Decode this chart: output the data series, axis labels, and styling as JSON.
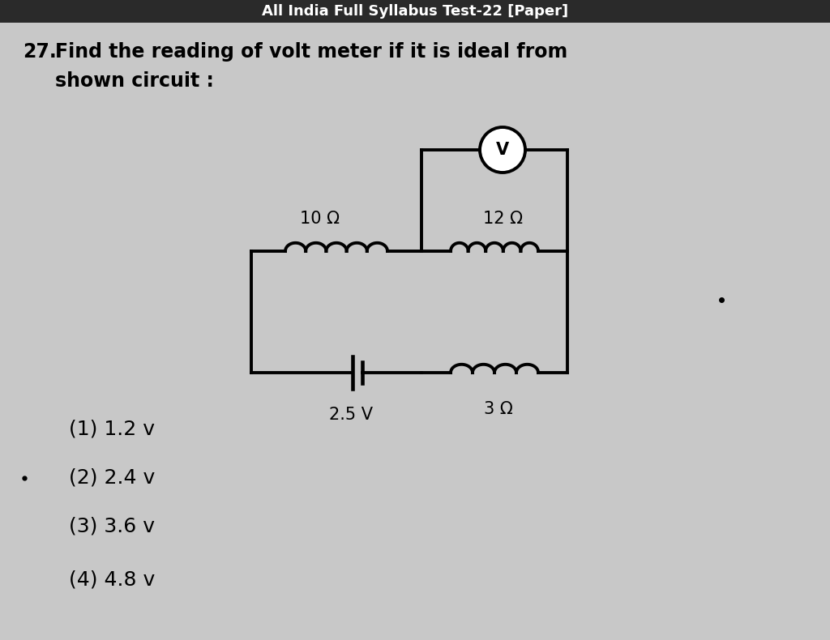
{
  "background_color": "#c8c8c8",
  "header_text": "All India Full Syllabus Test-22 [Paper]",
  "question_number": "27.",
  "question_line1": "Find the reading of volt meter if it is ideal from",
  "question_line2": "shown circuit :",
  "options": [
    "(1) 1.2 v",
    "(2) 2.4 v",
    "(3) 3.6 v",
    "(4) 4.8 v"
  ],
  "resistor_10": "10 Ω",
  "resistor_12": "12 Ω",
  "resistor_3": "3 Ω",
  "battery_label": "2.5 V",
  "voltmeter_label": "V",
  "text_color": "#000000",
  "line_color": "#000000",
  "header_bg": "#2a2a2a",
  "lw": 2.8,
  "font_size_question": 17,
  "font_size_options": 18,
  "font_size_circuit_label": 15
}
